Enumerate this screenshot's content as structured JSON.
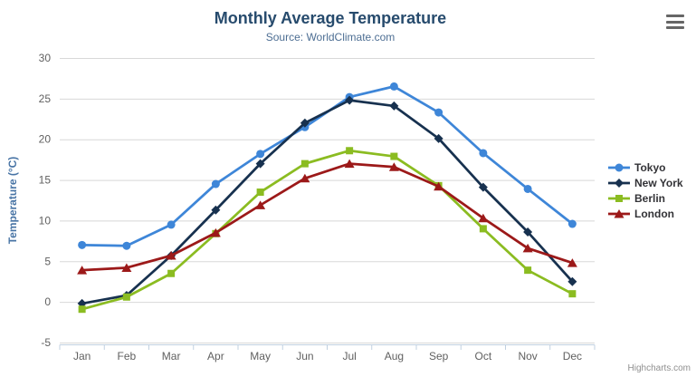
{
  "chart_data": {
    "type": "line",
    "title": "Monthly Average Temperature",
    "subtitle": "Source: WorldClimate.com",
    "ylabel": "Temperature (°C)",
    "categories": [
      "Jan",
      "Feb",
      "Mar",
      "Apr",
      "May",
      "Jun",
      "Jul",
      "Aug",
      "Sep",
      "Oct",
      "Nov",
      "Dec"
    ],
    "ylim": [
      -5,
      30
    ],
    "ytick_step": 5,
    "yticks": [
      -5,
      0,
      5,
      10,
      15,
      20,
      25,
      30
    ],
    "grid": true,
    "legend_position": "right",
    "series": [
      {
        "name": "Tokyo",
        "marker": "circle",
        "color": "#3e86d8",
        "values": [
          7.0,
          6.9,
          9.5,
          14.5,
          18.2,
          21.5,
          25.2,
          26.5,
          23.3,
          18.3,
          13.9,
          9.6
        ]
      },
      {
        "name": "New York",
        "marker": "diamond",
        "color": "#17314f",
        "values": [
          -0.2,
          0.8,
          5.7,
          11.3,
          17.0,
          22.0,
          24.8,
          24.1,
          20.1,
          14.1,
          8.6,
          2.5
        ]
      },
      {
        "name": "Berlin",
        "marker": "square",
        "color": "#8bbc21",
        "values": [
          -0.9,
          0.6,
          3.5,
          8.4,
          13.5,
          17.0,
          18.6,
          17.9,
          14.3,
          9.0,
          3.9,
          1.0
        ]
      },
      {
        "name": "London",
        "marker": "triangle",
        "color": "#9c1919",
        "values": [
          3.9,
          4.2,
          5.7,
          8.5,
          11.9,
          15.2,
          17.0,
          16.6,
          14.2,
          10.3,
          6.6,
          4.8
        ]
      }
    ],
    "appearance": {
      "grid_color": "#d8d8d8",
      "axis_line_color": "#c0d0e0",
      "tick_label_color": "#606060",
      "title_color": "#274b6d",
      "subtitle_color": "#4d6e93",
      "yaxis_title_color": "#4874a5",
      "legend_text_color": "#333337",
      "credit_color": "#8f8f8f",
      "menu_icon_color": "#666666"
    },
    "credit": "Highcharts.com"
  },
  "header": {
    "export_menu_icon": "hamburger-icon"
  }
}
